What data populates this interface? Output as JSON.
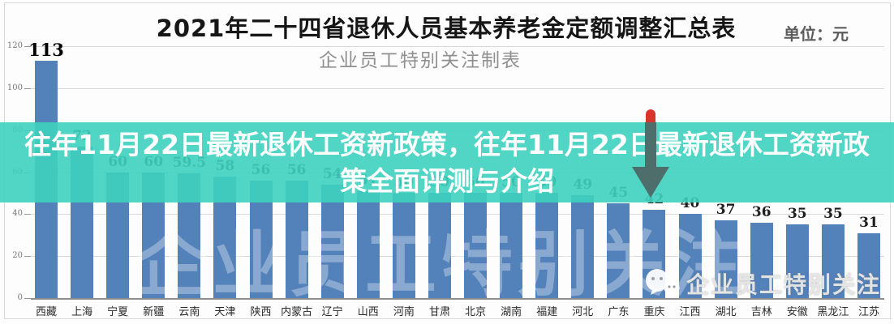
{
  "header": {
    "title": "2021年二十四省退休人员基本养老金定额调整汇总表",
    "unit_label": "单位：元",
    "subtitle": "企业员工特别关注制表"
  },
  "overlay_banner": {
    "text": "往年11月22日最新退休工资新政策，往年11月22日最新退休工资新政策全面评测与介绍",
    "background_color": "#3ED2BF",
    "text_color": "#FFFFFF"
  },
  "chart_data": {
    "type": "bar",
    "title": "2021年二十四省退休人员基本养老金定额调整汇总表",
    "unit": "元",
    "categories": [
      "西藏",
      "上海",
      "宁夏",
      "新疆",
      "云南",
      "天津",
      "陕西",
      "内蒙古",
      "辽宁",
      "山西",
      "河南",
      "甘肃",
      "北京",
      "湖南",
      "福建",
      "河北",
      "广东",
      "重庆",
      "江西",
      "湖北",
      "吉林",
      "安徽",
      "黑龙江",
      "江苏"
    ],
    "values": [
      113,
      72,
      60,
      60,
      59.5,
      58,
      56,
      56,
      54,
      51,
      50,
      50,
      50,
      50,
      50,
      49,
      45,
      42,
      40,
      37,
      36,
      35,
      35,
      31
    ],
    "ylim": [
      0,
      120
    ],
    "yticks": [
      0,
      20,
      40,
      60,
      80,
      100,
      120
    ],
    "grid": true,
    "legend": false,
    "bar_color": "#5381BA",
    "annotation": {
      "type": "arrow-down",
      "target_category": "重庆",
      "tip_color": "#D9352C",
      "body_color": "#4E6E6B"
    }
  },
  "watermarks": {
    "center_text": "企业员工特别关注",
    "corner_text": "企业员工特别关注",
    "corner_icon": "wechat-chat-bubbles-icon"
  }
}
